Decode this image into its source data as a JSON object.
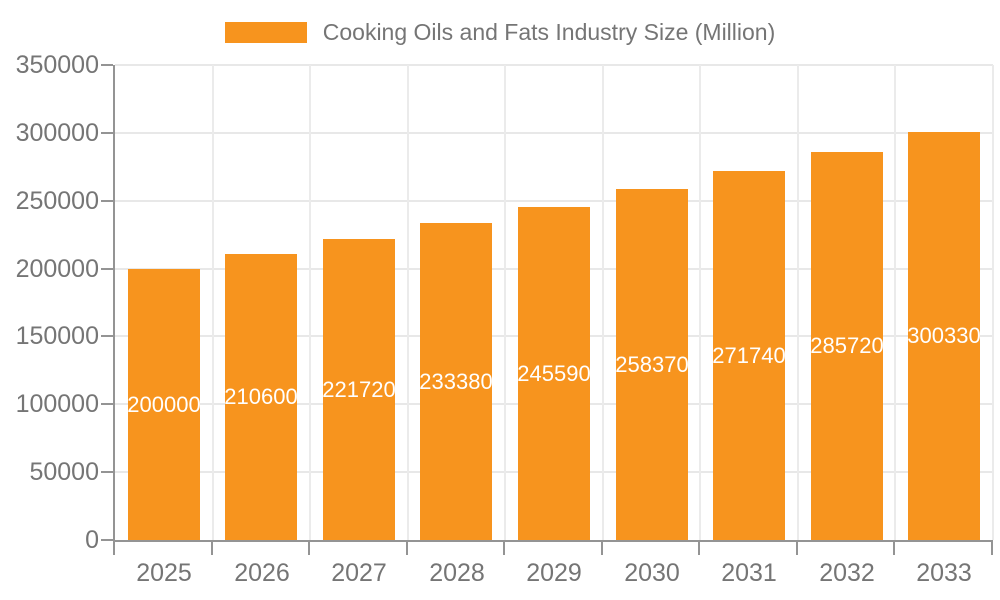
{
  "legend": {
    "label": "Cooking Oils and Fats Industry Size (Million)",
    "swatch_color": "#F7941E"
  },
  "chart_data": {
    "type": "bar",
    "title": "Cooking Oils and Fats Industry Size (Million)",
    "categories": [
      "2025",
      "2026",
      "2027",
      "2028",
      "2029",
      "2030",
      "2031",
      "2032",
      "2033"
    ],
    "series": [
      {
        "name": "Cooking Oils and Fats Industry Size (Million)",
        "values": [
          200000,
          210600,
          221720,
          233380,
          245590,
          258370,
          271740,
          285720,
          300330
        ]
      }
    ],
    "bar_labels": [
      "200000",
      "210600",
      "221720",
      "233380",
      "245590",
      "258370",
      "271740",
      "285720",
      "300330"
    ],
    "xlabel": "",
    "ylabel": "",
    "ylim": [
      0,
      350000
    ],
    "yticks": [
      0,
      50000,
      100000,
      150000,
      200000,
      250000,
      300000,
      350000
    ],
    "ytick_labels": [
      "0",
      "50000",
      "100000",
      "150000",
      "200000",
      "250000",
      "300000",
      "350000"
    ],
    "grid": true,
    "legend_position": "top"
  },
  "colors": {
    "bar": "#F7941E",
    "bar_label": "#FFFFFF",
    "axis": "#949494",
    "grid_h": "#E8E8E8",
    "grid_v": "#EBEBEB",
    "text": "#757575",
    "background": "#FFFFFF"
  }
}
